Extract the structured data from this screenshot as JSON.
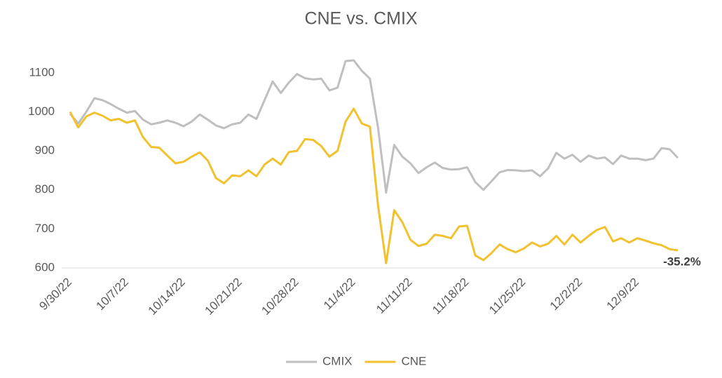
{
  "chart_data": {
    "type": "line",
    "title": "CNE vs. CMIX",
    "categories": [
      "9/30/22",
      null,
      null,
      null,
      null,
      null,
      null,
      "10/7/22",
      null,
      null,
      null,
      null,
      null,
      null,
      "10/14/22",
      null,
      null,
      null,
      null,
      null,
      null,
      "10/21/22",
      null,
      null,
      null,
      null,
      null,
      null,
      "10/28/22",
      null,
      null,
      null,
      null,
      null,
      null,
      "11/4/22",
      null,
      null,
      null,
      null,
      null,
      null,
      "11/11/22",
      null,
      null,
      null,
      null,
      null,
      null,
      "11/18/22",
      null,
      null,
      null,
      null,
      null,
      null,
      "11/25/22",
      null,
      null,
      null,
      null,
      null,
      null,
      "12/2/22",
      null,
      null,
      null,
      null,
      null,
      null,
      "12/9/22",
      null,
      null,
      null,
      null,
      null
    ],
    "series": [
      {
        "name": "CMIX",
        "color": "#bfbfbf",
        "values": [
          995,
          970,
          1000,
          1035,
          1030,
          1020,
          1008,
          998,
          1002,
          980,
          968,
          972,
          978,
          972,
          963,
          975,
          993,
          980,
          965,
          958,
          968,
          972,
          993,
          982,
          1030,
          1078,
          1048,
          1075,
          1097,
          1086,
          1083,
          1085,
          1055,
          1062,
          1130,
          1132,
          1105,
          1085,
          960,
          793,
          915,
          885,
          868,
          843,
          858,
          870,
          856,
          852,
          853,
          858,
          820,
          800,
          822,
          845,
          851,
          850,
          848,
          850,
          835,
          855,
          895,
          880,
          890,
          872,
          888,
          880,
          883,
          866,
          888,
          880,
          880,
          876,
          880,
          907,
          904,
          882
        ]
      },
      {
        "name": "CNE",
        "color": "#f2c12e",
        "values": [
          1000,
          960,
          988,
          998,
          990,
          978,
          982,
          972,
          978,
          935,
          910,
          908,
          888,
          868,
          872,
          885,
          896,
          875,
          830,
          817,
          837,
          835,
          850,
          835,
          865,
          880,
          865,
          897,
          900,
          930,
          928,
          912,
          885,
          900,
          975,
          1008,
          970,
          962,
          760,
          612,
          748,
          717,
          672,
          656,
          662,
          685,
          682,
          676,
          706,
          708,
          632,
          620,
          638,
          660,
          648,
          640,
          650,
          665,
          655,
          662,
          682,
          660,
          685,
          665,
          682,
          697,
          705,
          668,
          676,
          665,
          676,
          670,
          663,
          658,
          648,
          645
        ]
      }
    ],
    "annotation": "-35.2%",
    "ylim": [
      600,
      1150
    ],
    "yticks": [
      600,
      700,
      800,
      900,
      1000,
      1100
    ],
    "legend": "bottom"
  }
}
